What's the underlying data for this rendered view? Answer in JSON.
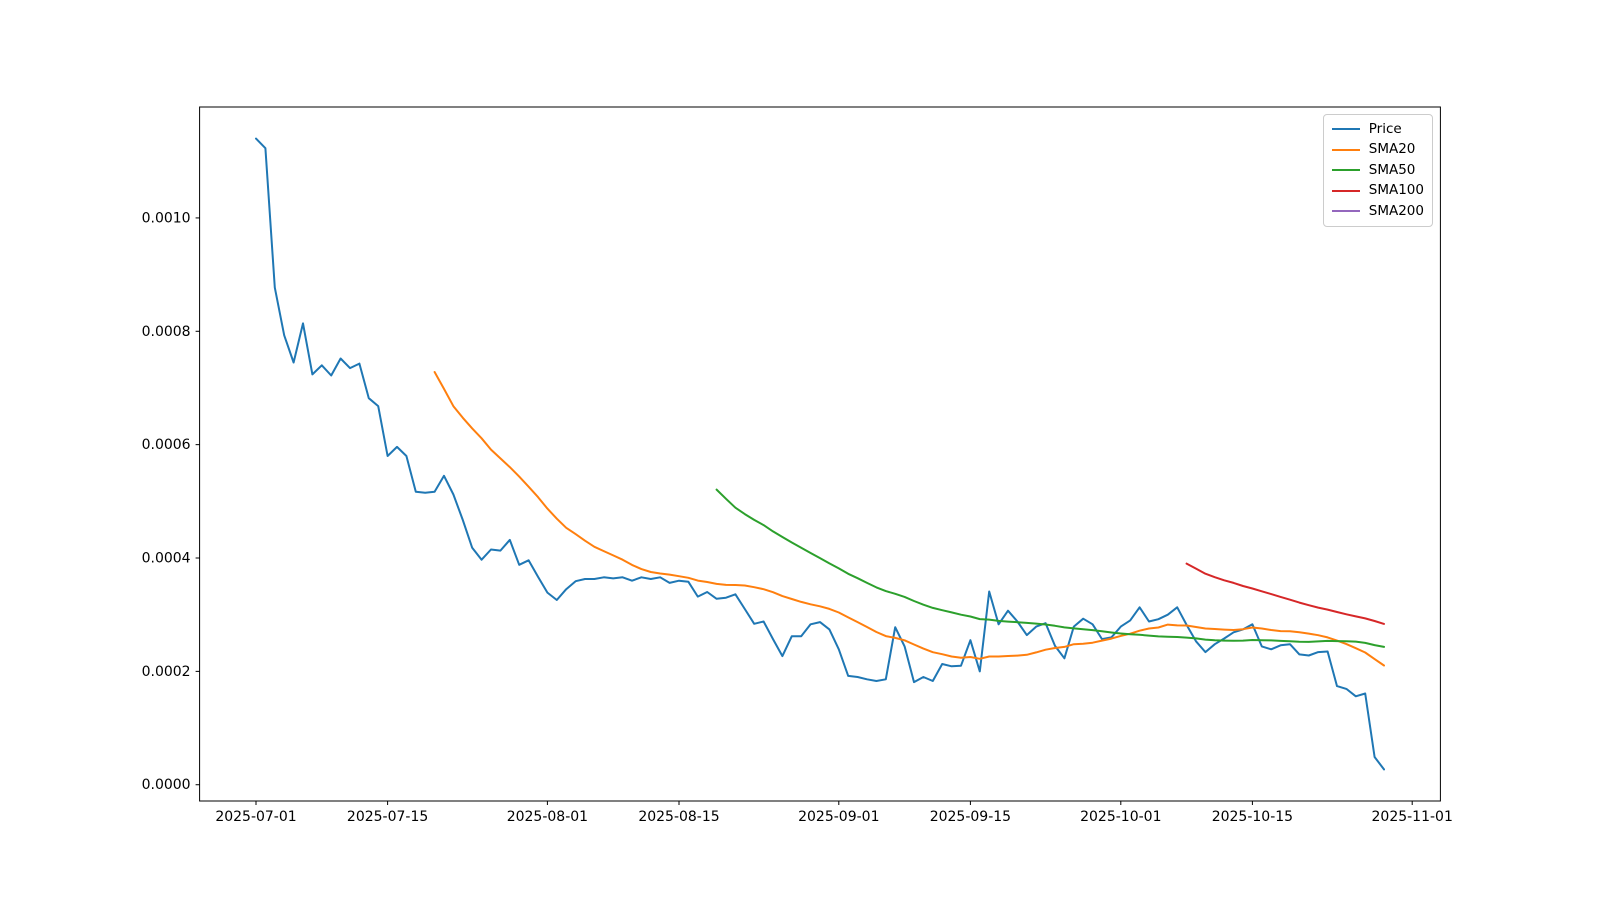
{
  "chart_data": {
    "type": "line",
    "title": "",
    "xlabel": "",
    "ylabel": "",
    "grid": false,
    "legend_position": "upper right",
    "xlim_dates": [
      "2025-06-25",
      "2025-11-04"
    ],
    "ylim": [
      -2.87e-05,
      0.0011957
    ],
    "x_ticks": [
      {
        "date": "2025-07-01",
        "label": "2025-07-01"
      },
      {
        "date": "2025-07-15",
        "label": "2025-07-15"
      },
      {
        "date": "2025-08-01",
        "label": "2025-08-01"
      },
      {
        "date": "2025-08-15",
        "label": "2025-08-15"
      },
      {
        "date": "2025-09-01",
        "label": "2025-09-01"
      },
      {
        "date": "2025-09-15",
        "label": "2025-09-15"
      },
      {
        "date": "2025-10-01",
        "label": "2025-10-01"
      },
      {
        "date": "2025-10-15",
        "label": "2025-10-15"
      },
      {
        "date": "2025-11-01",
        "label": "2025-11-01"
      }
    ],
    "y_ticks": [
      {
        "value": 0.0,
        "label": "0.0000"
      },
      {
        "value": 0.0002,
        "label": "0.0002"
      },
      {
        "value": 0.0004,
        "label": "0.0004"
      },
      {
        "value": 0.0006,
        "label": "0.0006"
      },
      {
        "value": 0.0008,
        "label": "0.0008"
      },
      {
        "value": 0.001,
        "label": "0.0010"
      }
    ],
    "dates": [
      "2025-07-01",
      "2025-07-02",
      "2025-07-03",
      "2025-07-04",
      "2025-07-05",
      "2025-07-06",
      "2025-07-07",
      "2025-07-08",
      "2025-07-09",
      "2025-07-10",
      "2025-07-11",
      "2025-07-12",
      "2025-07-13",
      "2025-07-14",
      "2025-07-15",
      "2025-07-16",
      "2025-07-17",
      "2025-07-18",
      "2025-07-19",
      "2025-07-20",
      "2025-07-21",
      "2025-07-22",
      "2025-07-23",
      "2025-07-24",
      "2025-07-25",
      "2025-07-26",
      "2025-07-27",
      "2025-07-28",
      "2025-07-29",
      "2025-07-30",
      "2025-07-31",
      "2025-08-01",
      "2025-08-02",
      "2025-08-03",
      "2025-08-04",
      "2025-08-05",
      "2025-08-06",
      "2025-08-07",
      "2025-08-08",
      "2025-08-09",
      "2025-08-10",
      "2025-08-11",
      "2025-08-12",
      "2025-08-13",
      "2025-08-14",
      "2025-08-15",
      "2025-08-16",
      "2025-08-17",
      "2025-08-18",
      "2025-08-19",
      "2025-08-20",
      "2025-08-21",
      "2025-08-22",
      "2025-08-23",
      "2025-08-24",
      "2025-08-25",
      "2025-08-26",
      "2025-08-27",
      "2025-08-28",
      "2025-08-29",
      "2025-08-30",
      "2025-08-31",
      "2025-09-01",
      "2025-09-02",
      "2025-09-03",
      "2025-09-04",
      "2025-09-05",
      "2025-09-06",
      "2025-09-07",
      "2025-09-08",
      "2025-09-09",
      "2025-09-10",
      "2025-09-11",
      "2025-09-12",
      "2025-09-13",
      "2025-09-14",
      "2025-09-15",
      "2025-09-16",
      "2025-09-17",
      "2025-09-18",
      "2025-09-19",
      "2025-09-20",
      "2025-09-21",
      "2025-09-22",
      "2025-09-23",
      "2025-09-24",
      "2025-09-25",
      "2025-09-26",
      "2025-09-27",
      "2025-09-28",
      "2025-09-29",
      "2025-09-30",
      "2025-10-01",
      "2025-10-02",
      "2025-10-03",
      "2025-10-04",
      "2025-10-05",
      "2025-10-06",
      "2025-10-07",
      "2025-10-08",
      "2025-10-09",
      "2025-10-10",
      "2025-10-11",
      "2025-10-12",
      "2025-10-13",
      "2025-10-14",
      "2025-10-15",
      "2025-10-16",
      "2025-10-17",
      "2025-10-18",
      "2025-10-19",
      "2025-10-20",
      "2025-10-21",
      "2025-10-22",
      "2025-10-23",
      "2025-10-24",
      "2025-10-25",
      "2025-10-26",
      "2025-10-27",
      "2025-10-28",
      "2025-10-29"
    ],
    "series": [
      {
        "name": "Price",
        "color": "#1f77b4",
        "kind": "price",
        "values": [
          0.00114,
          0.001123,
          0.000877,
          0.000793,
          0.000745,
          0.000814,
          0.000724,
          0.00074,
          0.000722,
          0.000752,
          0.000735,
          0.000743,
          0.000682,
          0.000668,
          0.00058,
          0.000596,
          0.00058,
          0.000517,
          0.000515,
          0.000517,
          0.000545,
          0.000512,
          0.000467,
          0.000418,
          0.000397,
          0.000415,
          0.000413,
          0.000432,
          0.000388,
          0.000396,
          0.000367,
          0.000339,
          0.000326,
          0.000345,
          0.000359,
          0.000363,
          0.000363,
          0.000366,
          0.000364,
          0.000366,
          0.00036,
          0.000366,
          0.000363,
          0.000366,
          0.000356,
          0.00036,
          0.000358,
          0.000332,
          0.00034,
          0.000328,
          0.00033,
          0.000336,
          0.00031,
          0.000284,
          0.000288,
          0.000257,
          0.000227,
          0.000262,
          0.000262,
          0.000283,
          0.000287,
          0.000274,
          0.000239,
          0.000192,
          0.00019,
          0.000186,
          0.000183,
          0.000186,
          0.000278,
          0.000244,
          0.000181,
          0.00019,
          0.000183,
          0.000213,
          0.000209,
          0.00021,
          0.000255,
          0.0002,
          0.000341,
          0.000283,
          0.000307,
          0.000288,
          0.000264,
          0.000279,
          0.000285,
          0.000245,
          0.000223,
          0.000279,
          0.000293,
          0.000283,
          0.000257,
          0.00026,
          0.000279,
          0.00029,
          0.000313,
          0.000288,
          0.000292,
          0.0003,
          0.000313,
          0.000282,
          0.000253,
          0.000234,
          0.000248,
          0.000258,
          0.000269,
          0.000274,
          0.000283,
          0.000244,
          0.000239,
          0.000246,
          0.000248,
          0.00023,
          0.000228,
          0.000234,
          0.000235,
          0.000174,
          0.000169,
          0.000156,
          0.000161,
          4.9e-05,
          2.7e-05
        ]
      },
      {
        "name": "SMA20",
        "color": "#ff7f0e",
        "kind": "sma",
        "window": 20
      },
      {
        "name": "SMA50",
        "color": "#2ca02c",
        "kind": "sma",
        "window": 50
      },
      {
        "name": "SMA100",
        "color": "#d62728",
        "kind": "sma",
        "window": 100
      },
      {
        "name": "SMA200",
        "color": "#9467bd",
        "kind": "sma",
        "window": 200
      }
    ]
  }
}
